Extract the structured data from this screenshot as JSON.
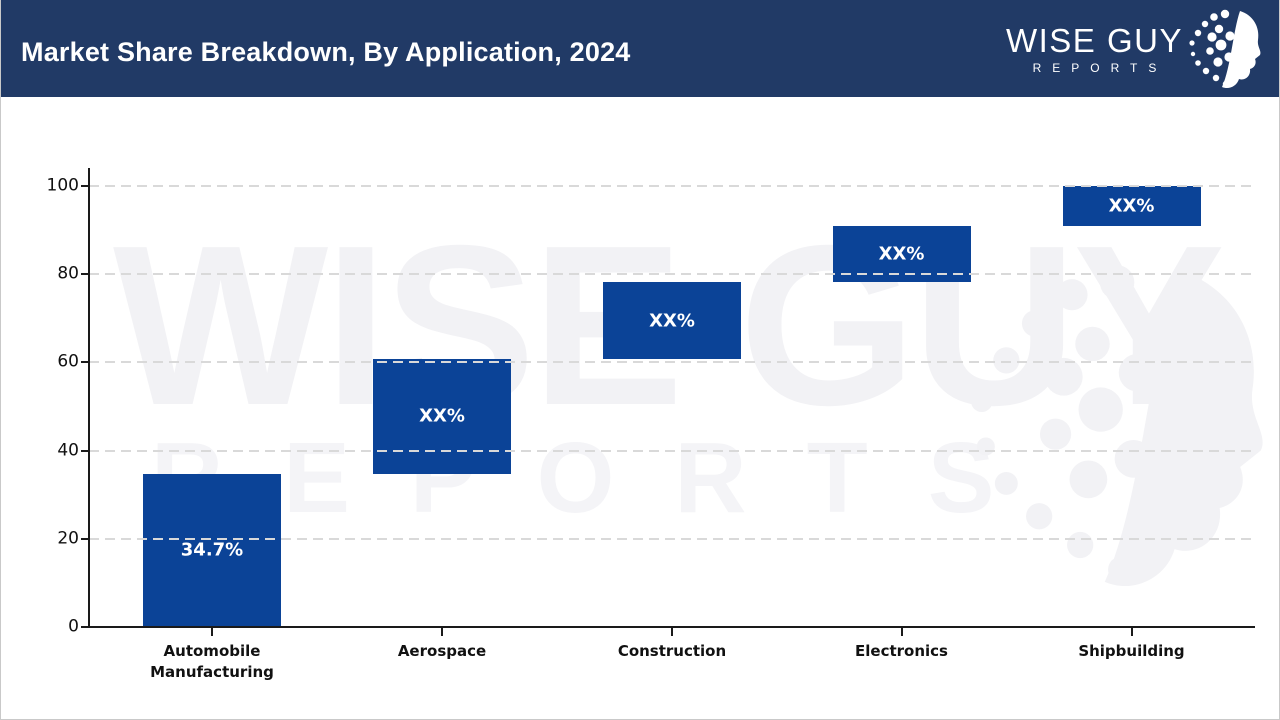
{
  "header": {
    "title": "Market Share Breakdown, By Application, 2024",
    "logo": {
      "line1": "WISE GUY",
      "line2": "REPORTS"
    }
  },
  "watermark": {
    "line1": "WISE GUY",
    "line2": "REPORTS"
  },
  "colors": {
    "header_bg": "#213a66",
    "bar": "#0b4397",
    "title_text": "#ffffff",
    "axis": "#1a1a1a",
    "grid": "#d9d9d9",
    "watermark": "#f2f2f5"
  },
  "chart_data": {
    "type": "bar",
    "subtype": "waterfall",
    "title": "Market Share Breakdown, By Application, 2024",
    "categories": [
      "Automobile Manufacturing",
      "Aerospace",
      "Construction",
      "Electronics",
      "Shipbuilding"
    ],
    "segments": [
      {
        "category": "Automobile Manufacturing",
        "start": 0,
        "end": 34.7,
        "label": "34.7%"
      },
      {
        "category": "Aerospace",
        "start": 34.7,
        "end": 60.8,
        "label": "XX%"
      },
      {
        "category": "Construction",
        "start": 60.8,
        "end": 78.2,
        "label": "XX%"
      },
      {
        "category": "Electronics",
        "start": 78.2,
        "end": 90.9,
        "label": "XX%"
      },
      {
        "category": "Shipbuilding",
        "start": 90.9,
        "end": 100,
        "label": "XX%"
      }
    ],
    "ylim": [
      0,
      100
    ],
    "yticks": [
      0,
      20,
      40,
      60,
      80,
      100
    ],
    "grid": "horizontal-dashed",
    "legend": "none",
    "xlabel": "",
    "ylabel": ""
  }
}
